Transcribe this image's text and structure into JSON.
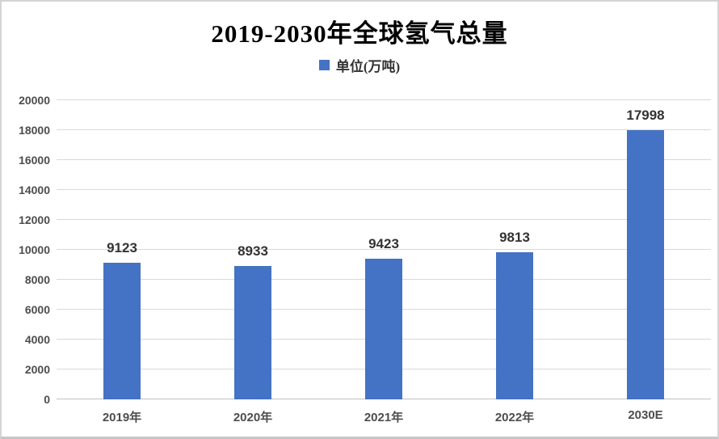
{
  "chart_data": {
    "type": "bar",
    "title": "2019-2030年全球氢气总量",
    "legend": [
      "单位(万吨)"
    ],
    "legend_position": "top",
    "categories": [
      "2019年",
      "2020年",
      "2021年",
      "2022年",
      "2030E"
    ],
    "values": [
      9123,
      8933,
      9423,
      9813,
      17998
    ],
    "data_labels": [
      "9123",
      "8933",
      "9423",
      "9813",
      "17998"
    ],
    "ylim": [
      0,
      20000
    ],
    "ytick_step": 2000,
    "yticks": [
      0,
      2000,
      4000,
      6000,
      8000,
      10000,
      12000,
      14000,
      16000,
      18000,
      20000
    ],
    "grid": true,
    "bar_color": "#4472C4",
    "gridline_color": "#D9D9D9",
    "title_color": "#000000",
    "label_color": "#333333",
    "axis_text_color": "#4D4D4D"
  }
}
